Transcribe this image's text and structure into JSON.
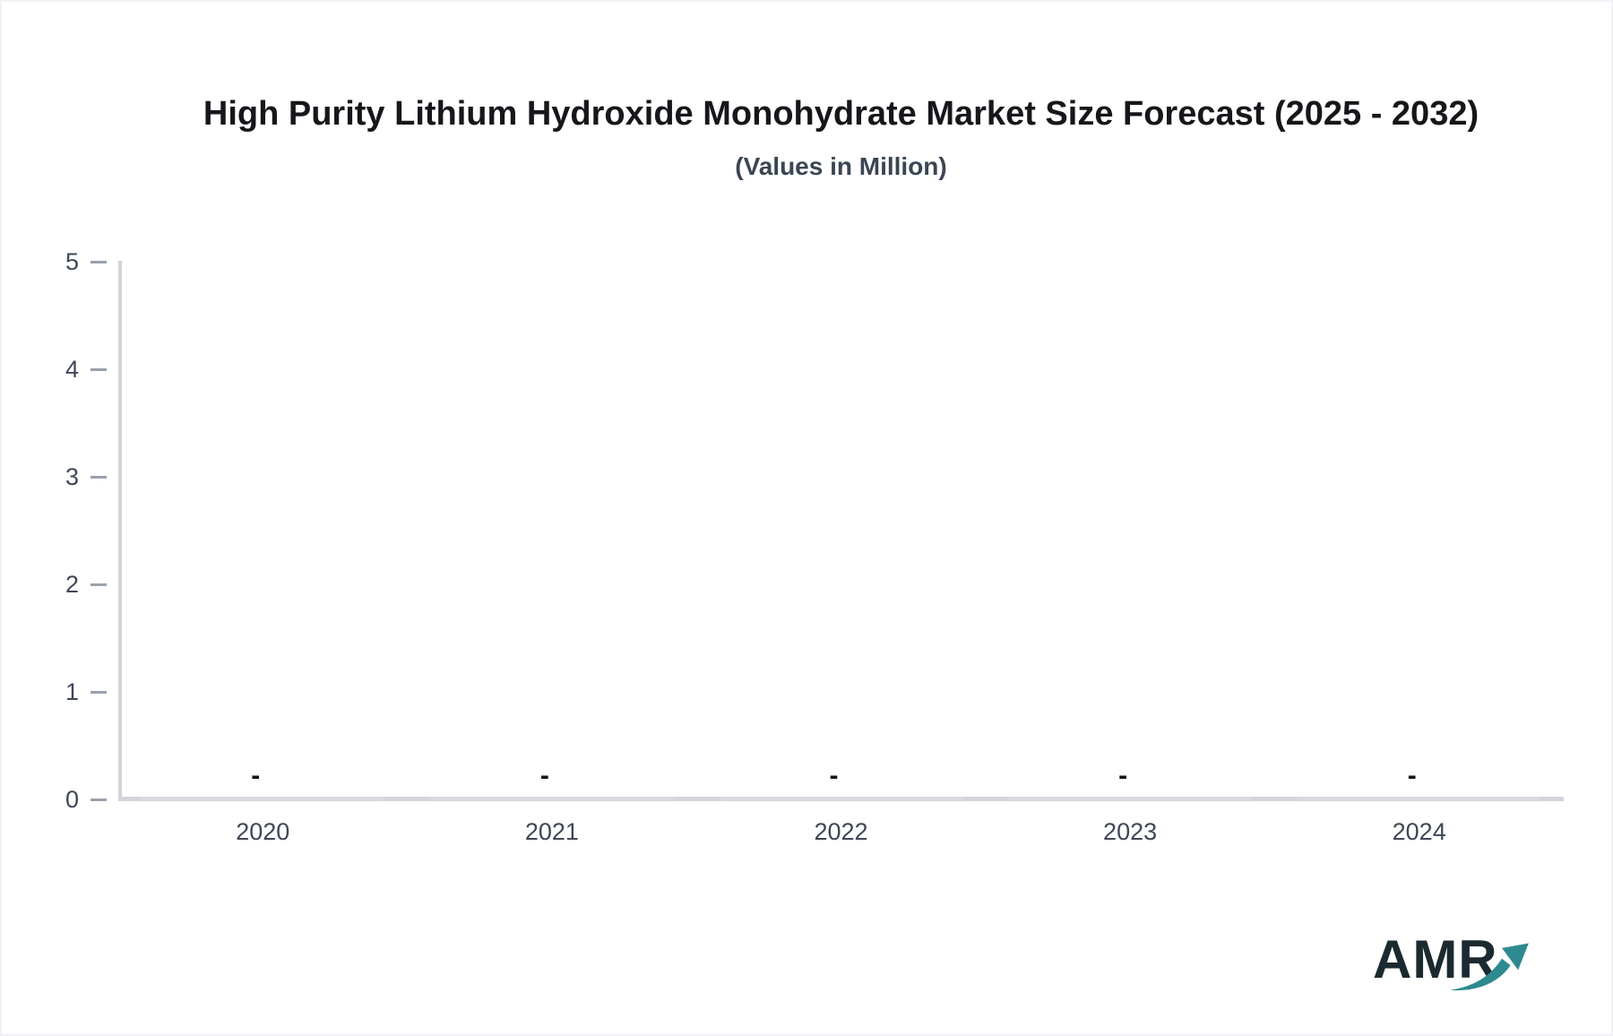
{
  "page": {
    "background": "#ffffff",
    "border_color": "#f0f2f5"
  },
  "header": {
    "title": "High Purity Lithium Hydroxide Monohydrate Market Size Forecast (2025 - 2032)",
    "subtitle": "(Values in Million)"
  },
  "chart_data": {
    "type": "bar",
    "title": "High Purity Lithium Hydroxide Monohydrate Market Size Forecast (2025 - 2032)",
    "subtitle": "(Values in Million)",
    "categories": [
      "2020",
      "2021",
      "2022",
      "2023",
      "2024"
    ],
    "values": [
      0,
      0,
      0,
      0,
      0
    ],
    "bar_value_labels": [
      "-",
      "-",
      "-",
      "-",
      "-"
    ],
    "ylim": [
      0,
      5
    ],
    "yticks": [
      "0",
      "1",
      "2",
      "3",
      "4",
      "5"
    ],
    "xlabel": "",
    "ylabel": "",
    "grid": false,
    "legend": "none",
    "colors": {
      "bar": "#d8d9df",
      "axis": "#d3d4db",
      "tick_mark": "#9aa1ad",
      "tick_label": "#3e4756",
      "bar_value_label": "#141414"
    }
  },
  "logo": {
    "text": "AMR",
    "icon": "trend-up-arrow-icon",
    "text_color": "#1b2a30",
    "arrow_color": "#2d8a90"
  }
}
